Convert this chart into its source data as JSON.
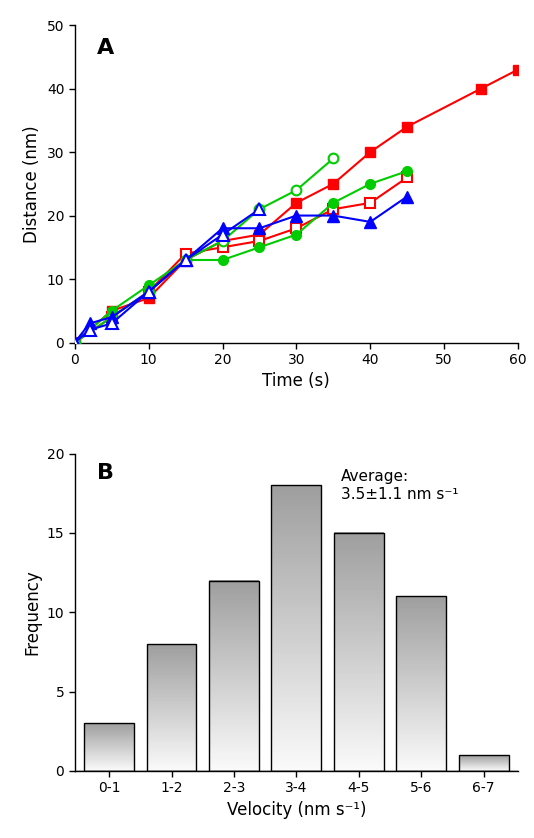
{
  "panel_A_label": "A",
  "panel_B_label": "B",
  "series": [
    {
      "name": "red_solid_square",
      "color": "#ff0000",
      "marker": "s",
      "filled": true,
      "x": [
        0,
        5,
        10,
        15,
        20,
        25,
        30,
        35,
        40,
        45,
        55,
        60
      ],
      "y": [
        0,
        5,
        7,
        13,
        16,
        17,
        22,
        25,
        30,
        34,
        40,
        43
      ]
    },
    {
      "name": "red_open_square",
      "color": "#ff0000",
      "marker": "s",
      "filled": false,
      "x": [
        0,
        5,
        10,
        15,
        20,
        25,
        30,
        35,
        40,
        45
      ],
      "y": [
        0,
        4,
        8,
        14,
        15,
        16,
        18,
        21,
        22,
        26
      ]
    },
    {
      "name": "green_solid_circle",
      "color": "#00cc00",
      "marker": "o",
      "filled": true,
      "x": [
        0,
        5,
        10,
        15,
        20,
        25,
        30,
        35,
        40,
        45
      ],
      "y": [
        0,
        5,
        9,
        13,
        13,
        15,
        17,
        22,
        25,
        27
      ]
    },
    {
      "name": "green_open_circle",
      "color": "#00cc00",
      "marker": "o",
      "filled": false,
      "x": [
        0,
        5,
        10,
        15,
        20,
        25,
        30,
        35
      ],
      "y": [
        0,
        4,
        8,
        13,
        16,
        21,
        24,
        29
      ]
    },
    {
      "name": "blue_solid_triangle",
      "color": "#0000ff",
      "marker": "^",
      "filled": true,
      "x": [
        0,
        2,
        5,
        10,
        15,
        20,
        25,
        30,
        35,
        40,
        45
      ],
      "y": [
        0,
        3,
        4,
        8,
        13,
        18,
        18,
        20,
        20,
        19,
        23
      ]
    },
    {
      "name": "blue_open_triangle",
      "color": "#0000ff",
      "marker": "^",
      "filled": false,
      "x": [
        0,
        2,
        5,
        10,
        15,
        20,
        25
      ],
      "y": [
        0,
        2,
        3,
        8,
        13,
        17,
        21
      ]
    }
  ],
  "xlim_A": [
    0,
    60
  ],
  "ylim_A": [
    0,
    50
  ],
  "xticks_A": [
    0,
    10,
    20,
    30,
    40,
    50,
    60
  ],
  "yticks_A": [
    0,
    10,
    20,
    30,
    40,
    50
  ],
  "xlabel_A": "Time (s)",
  "ylabel_A": "Distance (nm)",
  "bar_categories": [
    "0-1",
    "1-2",
    "2-3",
    "3-4",
    "4-5",
    "5-6",
    "6-7"
  ],
  "bar_values": [
    3,
    8,
    12,
    18,
    15,
    11,
    1
  ],
  "bar_edge_color": "#000000",
  "xlabel_B": "Velocity (nm s⁻¹)",
  "ylabel_B": "Frequency",
  "ylim_B": [
    0,
    20
  ],
  "yticks_B": [
    0,
    5,
    10,
    15,
    20
  ],
  "annotation_text": "Average:\n3.5±1.1 nm s⁻¹"
}
